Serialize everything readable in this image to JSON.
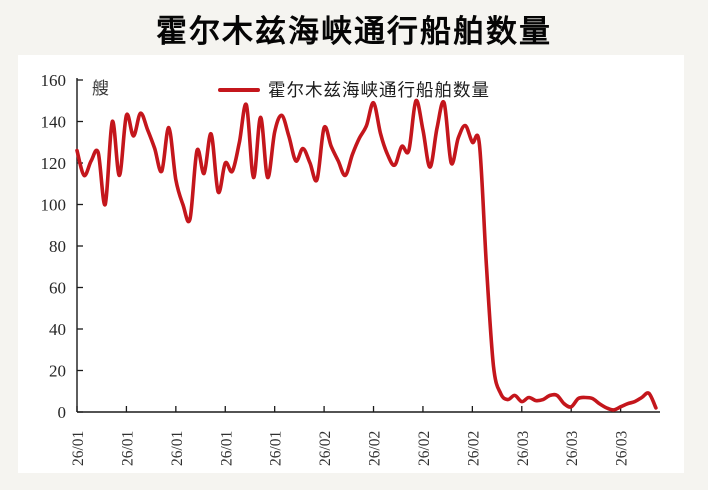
{
  "page": {
    "title": "霍尔木兹海峡通行船舶数量"
  },
  "chart_data": {
    "type": "line",
    "title": "霍尔木兹海峡通行船舶数量",
    "unit_label": "艘",
    "grid": false,
    "legend_position": "top-center",
    "axis_color": "#1a1a1a",
    "ylim": [
      0,
      160
    ],
    "y_ticks": [
      0,
      20,
      40,
      60,
      80,
      100,
      120,
      140,
      160
    ],
    "x_tick_labels": [
      "26/01",
      "26/01",
      "26/01",
      "26/01",
      "26/01",
      "26/02",
      "26/02",
      "26/02",
      "26/02",
      "26/03",
      "26/03",
      "26/03"
    ],
    "x_tick_day_index": [
      0,
      7,
      14,
      21,
      28,
      35,
      42,
      49,
      56,
      63,
      70,
      77
    ],
    "series": [
      {
        "name": "霍尔木兹海峡通行船舶数量",
        "color": "#c4161c",
        "values": [
          126,
          114,
          121,
          125,
          100,
          140,
          114,
          143,
          133,
          144,
          136,
          127,
          116,
          137,
          112,
          100,
          93,
          126,
          115,
          134,
          106,
          120,
          116,
          130,
          148,
          113,
          142,
          113,
          135,
          143,
          133,
          121,
          127,
          120,
          112,
          137,
          128,
          121,
          114,
          124,
          132,
          138,
          149,
          134,
          124,
          119,
          128,
          126,
          150,
          136,
          118,
          137,
          149,
          120,
          132,
          138,
          130,
          129,
          70,
          22,
          9,
          6,
          8,
          5,
          7,
          5.5,
          6,
          8,
          8,
          4,
          2.5,
          6.5,
          7,
          6.5,
          4,
          2,
          1,
          2.5,
          4,
          5,
          7,
          9,
          2
        ]
      }
    ]
  }
}
